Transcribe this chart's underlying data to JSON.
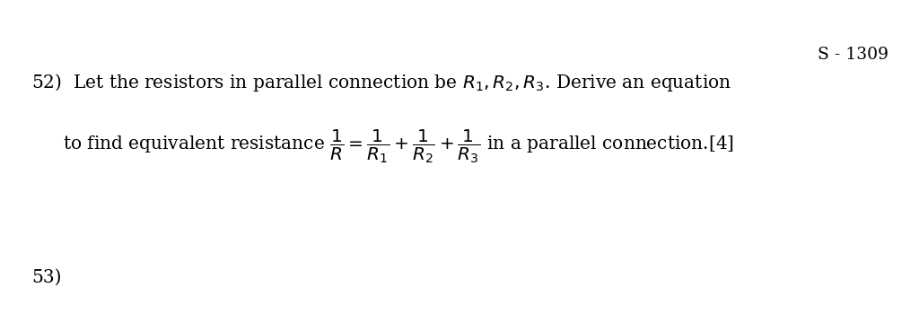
{
  "background_color": "#ffffff",
  "header": "S - 1309",
  "main_fontsize": 14.5,
  "header_fontsize": 13.5
}
